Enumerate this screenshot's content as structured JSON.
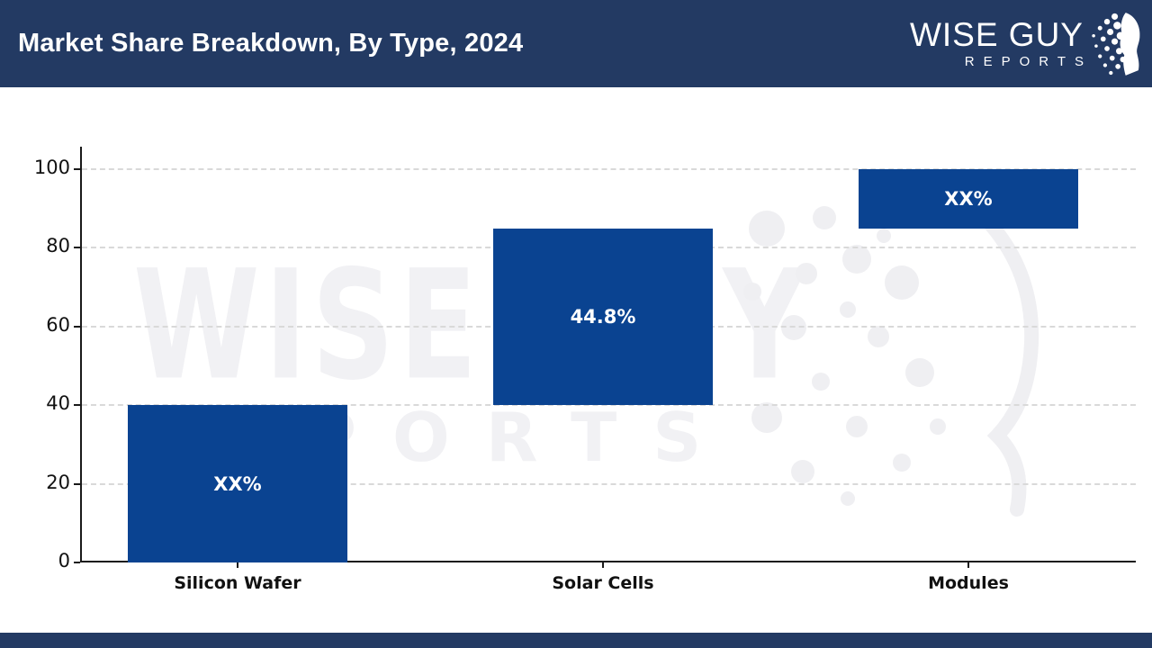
{
  "brand": {
    "line1": "WISE GUY",
    "line2": "REPORTS"
  },
  "colors": {
    "header_navy": "#233a63",
    "footer_navy": "#233a63",
    "bar_blue": "#0a4391",
    "grid_gray": "#d9d9d9",
    "watermark_gray": "#f1f1f4",
    "axis_black": "#1a1a1a",
    "title_white": "#ffffff"
  },
  "chart_data": {
    "type": "bar",
    "subtype": "waterfall",
    "title": "Market Share Breakdown, By Type, 2024",
    "categories": [
      "Silicon Wafer",
      "Solar Cells",
      "Modules"
    ],
    "series": [
      {
        "name": "Market Share",
        "segments": [
          {
            "category": "Silicon Wafer",
            "start": 0,
            "end": 40,
            "label": "XX%"
          },
          {
            "category": "Solar Cells",
            "start": 40,
            "end": 84.8,
            "label": "44.8%"
          },
          {
            "category": "Modules",
            "start": 84.8,
            "end": 100,
            "label": "XX%"
          }
        ]
      }
    ],
    "yticks": [
      0,
      20,
      40,
      60,
      80,
      100
    ],
    "ylim": [
      0,
      105
    ],
    "xlabel": "",
    "ylabel": "",
    "grid": "horizontal dashed",
    "legend": "none",
    "bar_color": "#0a4391",
    "bar_label_color": "#ffffff"
  }
}
